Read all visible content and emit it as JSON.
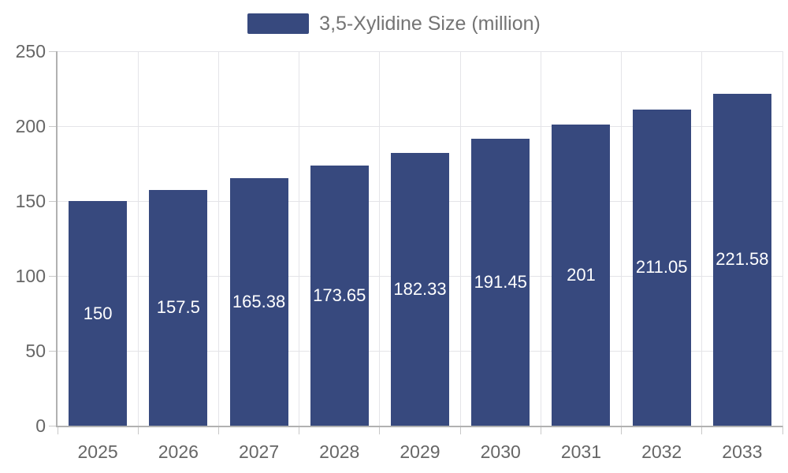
{
  "legend": {
    "label": "3,5-Xylidine Size (million)"
  },
  "colors": {
    "bar": "#37497e",
    "grid_line": "#e4e4e8",
    "axis_line": "#b1b1b1",
    "tick_line": "#c8c8c8",
    "axis_label": "#666666",
    "legend_text": "#747474",
    "value_label": "#ffffff",
    "background": "#ffffff"
  },
  "chart_data": {
    "type": "bar",
    "title": "3,5-Xylidine Size (million)",
    "categories": [
      "2025",
      "2026",
      "2027",
      "2028",
      "2029",
      "2030",
      "2031",
      "2032",
      "2033"
    ],
    "series": [
      {
        "name": "3,5-Xylidine Size (million)",
        "values": [
          150,
          157.5,
          165.38,
          173.65,
          182.33,
          191.45,
          201,
          211.05,
          221.58
        ]
      }
    ],
    "value_labels": [
      "150",
      "157.5",
      "165.38",
      "173.65",
      "182.33",
      "191.45",
      "201",
      "211.05",
      "221.58"
    ],
    "xlabel": "",
    "ylabel": "",
    "ylim": [
      0,
      250
    ],
    "y_ticks": [
      0,
      50,
      100,
      150,
      200,
      250
    ],
    "grid": true,
    "legend_position": "top"
  }
}
